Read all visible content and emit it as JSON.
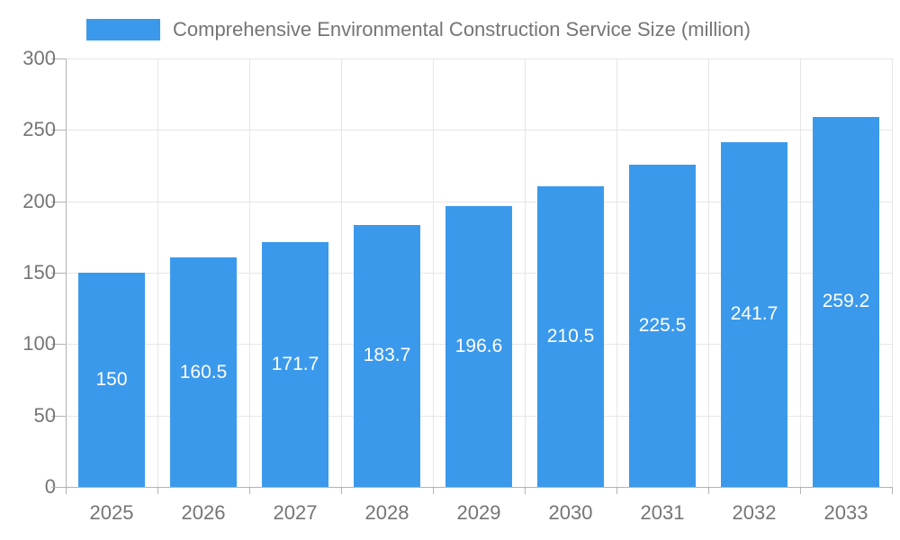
{
  "chart_data": {
    "type": "bar",
    "title": "Comprehensive Environmental Construction Service Size (million)",
    "categories": [
      "2025",
      "2026",
      "2027",
      "2028",
      "2029",
      "2030",
      "2031",
      "2032",
      "2033"
    ],
    "values": [
      150,
      160.5,
      171.7,
      183.7,
      196.6,
      210.5,
      225.5,
      241.7,
      259.2
    ],
    "value_labels": [
      "150",
      "160.5",
      "171.7",
      "183.7",
      "196.6",
      "210.5",
      "225.5",
      "241.7",
      "259.2"
    ],
    "xlabel": "",
    "ylabel": "",
    "ylim": [
      0,
      300
    ],
    "yticks": [
      0,
      50,
      100,
      150,
      200,
      250,
      300
    ],
    "grid": true,
    "legend_position": "top-left",
    "colors": {
      "bar": "#3B99EC",
      "axis_line": "#b3b3b3",
      "gridline": "#e6e6e6",
      "tick_label": "#757575",
      "value_label": "#ffffff",
      "background": "#ffffff"
    }
  }
}
